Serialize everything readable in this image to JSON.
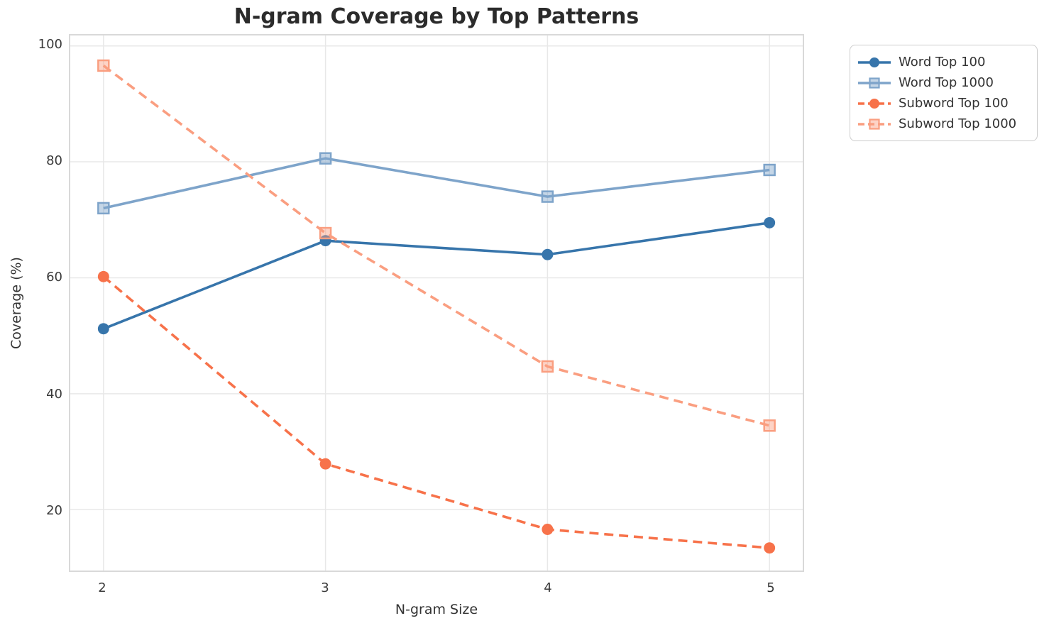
{
  "chart_data": {
    "type": "line",
    "title": "N-gram Coverage by Top Patterns",
    "xlabel": "N-gram Size",
    "ylabel": "Coverage (%)",
    "x": [
      2,
      3,
      4,
      5
    ],
    "xtick_labels": [
      "2",
      "3",
      "4",
      "5"
    ],
    "yticks": [
      20,
      40,
      60,
      80,
      100
    ],
    "ylim": [
      9.5,
      101.8
    ],
    "grid": true,
    "legend_position": "outside-upper-right",
    "series": [
      {
        "name": "Word Top 100",
        "values": [
          51.2,
          66.4,
          64.0,
          69.5
        ],
        "color": "#3775AB",
        "marker": "circle",
        "line_style": "solid"
      },
      {
        "name": "Word Top 1000",
        "values": [
          72.0,
          80.6,
          74.0,
          78.6
        ],
        "color": "#7EA4CA",
        "marker": "square",
        "line_style": "solid"
      },
      {
        "name": "Subword Top 100",
        "values": [
          60.2,
          27.9,
          16.6,
          13.4
        ],
        "color": "#F7724A",
        "marker": "circle",
        "line_style": "dashed"
      },
      {
        "name": "Subword Top 1000",
        "values": [
          96.6,
          67.7,
          44.7,
          34.5
        ],
        "color": "#FA9E80",
        "marker": "square",
        "line_style": "dashed"
      }
    ]
  },
  "colors": {
    "background": "#ffffff",
    "grid": "#e8e8e8",
    "spine": "#d9d9d9",
    "tick_label": "#3a3a3a",
    "title": "#2b2b2b",
    "legend_border": "#cccccc",
    "legend_text": "#333333"
  }
}
